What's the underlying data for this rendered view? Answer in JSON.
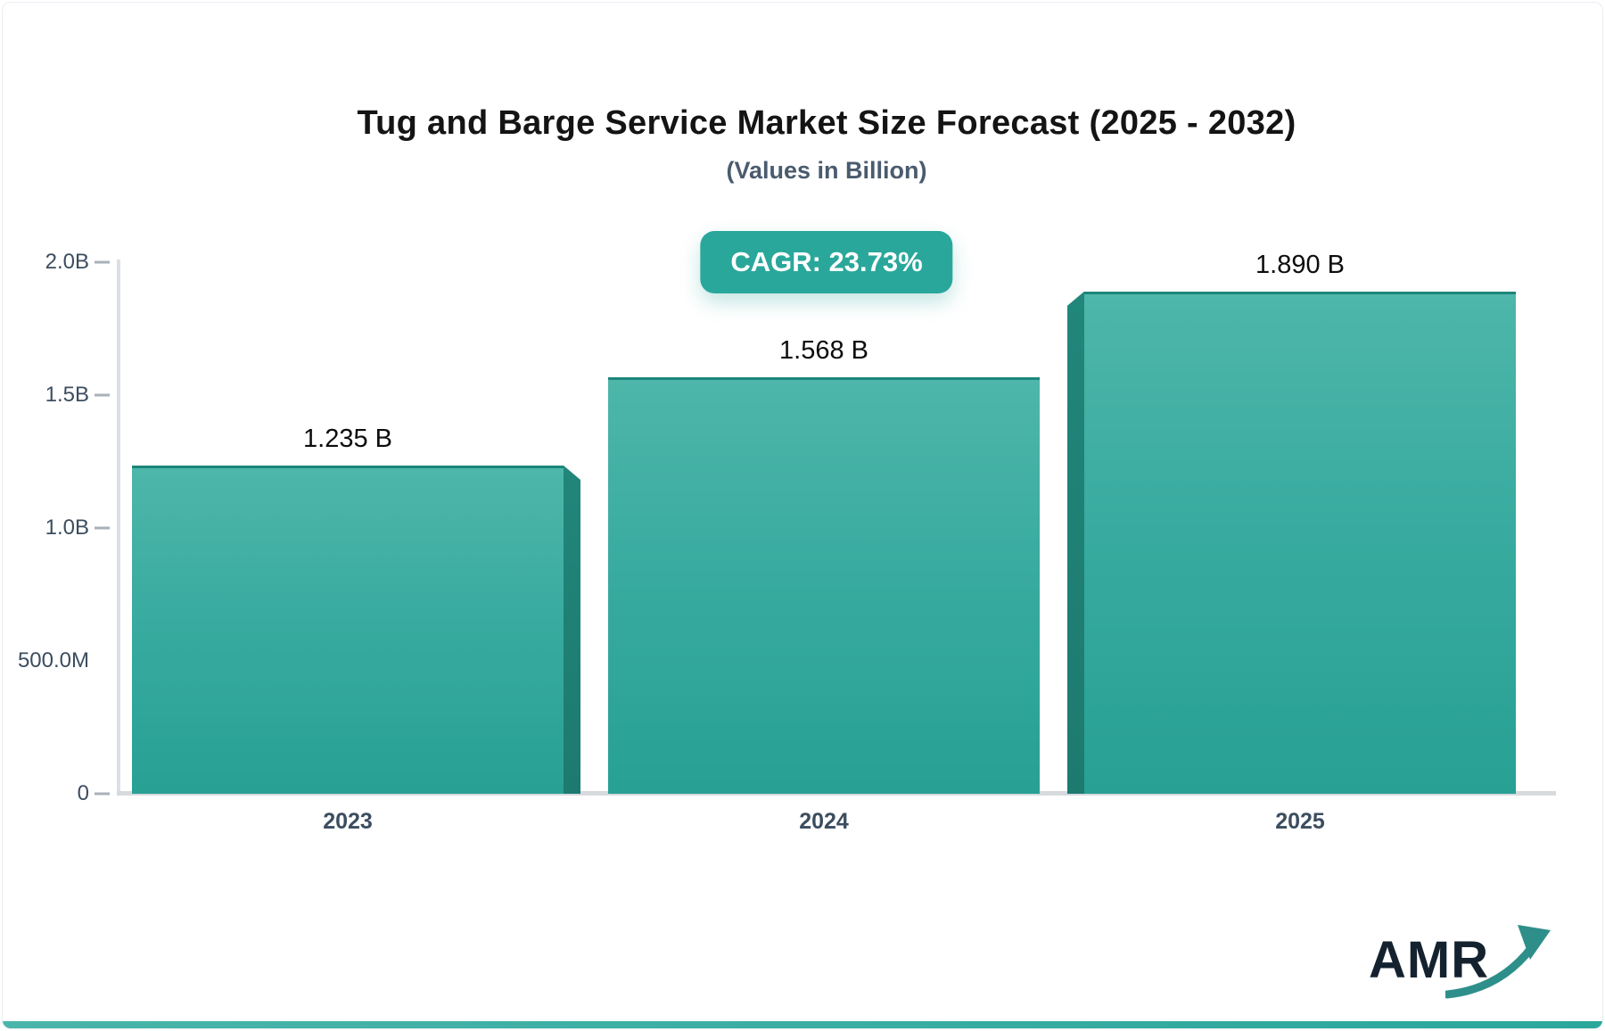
{
  "chart_data": {
    "type": "bar",
    "title": "Tug and Barge Service Market Size Forecast (2025 - 2032)",
    "subtitle": "(Values in Billion)",
    "categories": [
      "2023",
      "2024",
      "2025"
    ],
    "values": [
      1.235,
      1.568,
      1.89
    ],
    "value_labels": [
      "1.235 B",
      "1.568 B",
      "1.890 B"
    ],
    "ylim": [
      0,
      2.0
    ],
    "y_ticks": [
      {
        "label": "2.0B",
        "value": 2.0,
        "dash": true
      },
      {
        "label": "1.5B",
        "value": 1.5,
        "dash": true
      },
      {
        "label": "1.0B",
        "value": 1.0,
        "dash": true
      },
      {
        "label": "500.0M",
        "value": 0.5,
        "dash": false
      },
      {
        "label": "0",
        "value": 0.0,
        "dash": true
      }
    ],
    "grid": false,
    "legend": false
  },
  "badge": {
    "label": "CAGR: 23.73%"
  },
  "logo": {
    "text": "AMR"
  },
  "colors": {
    "accent": "#2aa79b",
    "bar_gradient_top": "#4eb6aa",
    "bar_gradient_bottom": "#28a094",
    "bar_bevel": "#1d7a6f",
    "axis_line": "#d6dadd",
    "tick_text": "#3c4d5f",
    "subtitle_text": "#4a5b6e",
    "title_text": "#141414",
    "logo_navy": "#142230",
    "logo_teal": "#2e8f8a"
  }
}
